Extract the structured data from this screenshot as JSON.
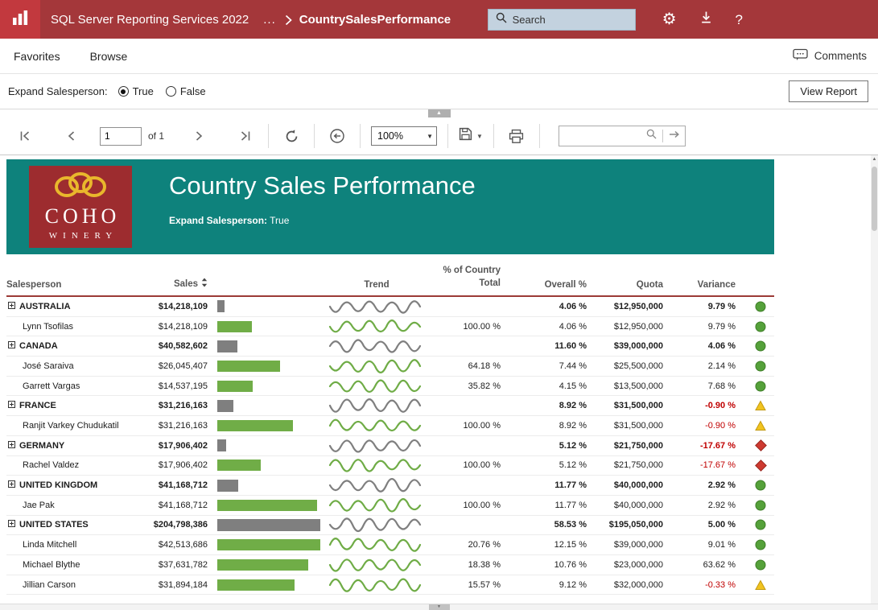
{
  "header": {
    "title": "SQL Server Reporting Services 2022",
    "breadcrumb_ellipsis": "...",
    "breadcrumb_current": "CountrySalesPerformance",
    "search_placeholder": "Search",
    "gear_icon": "⚙",
    "help_icon": "?"
  },
  "nav": {
    "favorites": "Favorites",
    "browse": "Browse",
    "comments": "Comments"
  },
  "params": {
    "label": "Expand Salesperson:",
    "option_true": "True",
    "option_false": "False",
    "selected": "True",
    "view_report": "View Report"
  },
  "toolbar": {
    "page_number": "1",
    "page_of": "of 1",
    "zoom": "100%"
  },
  "report": {
    "banner": {
      "logo_line1": "COHO",
      "logo_line2": "WINERY",
      "title": "Country Sales Performance",
      "param_label": "Expand Salesperson:",
      "param_value": "True"
    },
    "colors": {
      "brand_red": "#A4373A",
      "logo_tile_red": "#C2393E",
      "banner_teal": "#0E827C",
      "logo_red": "#9D2C2F",
      "ring_yellow": "#E9B72C",
      "country_bar": "#7F7F7F",
      "person_bar": "#70AD47",
      "country_spark": "#7F7F7F",
      "person_spark": "#6FAC46",
      "negative_text": "#C00000",
      "indicator_green": "#55A13A",
      "indicator_yellow": "#F1C31F",
      "indicator_red": "#CD3A30",
      "header_rule_red": "#9C3A36"
    },
    "table": {
      "headers": {
        "salesperson": "Salesperson",
        "sales": "Sales",
        "trend": "Trend",
        "pct_country": "% of Country Total",
        "overall": "Overall %",
        "quota": "Quota",
        "variance": "Variance"
      },
      "rows": [
        {
          "type": "country",
          "name": "AUSTRALIA",
          "sales": "$14,218,109",
          "sales_num": 14218109,
          "pct": "",
          "overall": "4.06 %",
          "quota": "$12,950,000",
          "variance": "9.79 %",
          "indicator": "green-circle"
        },
        {
          "type": "person",
          "name": "Lynn Tsofilas",
          "sales": "$14,218,109",
          "sales_num": 14218109,
          "pct": "100.00 %",
          "overall": "4.06 %",
          "quota": "$12,950,000",
          "variance": "9.79 %",
          "indicator": "green-circle"
        },
        {
          "type": "country",
          "name": "CANADA",
          "sales": "$40,582,602",
          "sales_num": 40582602,
          "pct": "",
          "overall": "11.60 %",
          "quota": "$39,000,000",
          "variance": "4.06 %",
          "indicator": "green-circle"
        },
        {
          "type": "person",
          "name": "José Saraiva",
          "sales": "$26,045,407",
          "sales_num": 26045407,
          "pct": "64.18 %",
          "overall": "7.44 %",
          "quota": "$25,500,000",
          "variance": "2.14 %",
          "indicator": "green-circle"
        },
        {
          "type": "person",
          "name": "Garrett Vargas",
          "sales": "$14,537,195",
          "sales_num": 14537195,
          "pct": "35.82 %",
          "overall": "4.15 %",
          "quota": "$13,500,000",
          "variance": "7.68 %",
          "indicator": "green-circle"
        },
        {
          "type": "country",
          "name": "FRANCE",
          "sales": "$31,216,163",
          "sales_num": 31216163,
          "pct": "",
          "overall": "8.92 %",
          "quota": "$31,500,000",
          "variance": "-0.90 %",
          "indicator": "yellow-triangle"
        },
        {
          "type": "person",
          "name": "Ranjit Varkey Chudukatil",
          "sales": "$31,216,163",
          "sales_num": 31216163,
          "pct": "100.00 %",
          "overall": "8.92 %",
          "quota": "$31,500,000",
          "variance": "-0.90 %",
          "indicator": "yellow-triangle"
        },
        {
          "type": "country",
          "name": "GERMANY",
          "sales": "$17,906,402",
          "sales_num": 17906402,
          "pct": "",
          "overall": "5.12 %",
          "quota": "$21,750,000",
          "variance": "-17.67 %",
          "indicator": "red-diamond"
        },
        {
          "type": "person",
          "name": "Rachel Valdez",
          "sales": "$17,906,402",
          "sales_num": 17906402,
          "pct": "100.00 %",
          "overall": "5.12 %",
          "quota": "$21,750,000",
          "variance": "-17.67 %",
          "indicator": "red-diamond"
        },
        {
          "type": "country",
          "name": "UNITED KINGDOM",
          "sales": "$41,168,712",
          "sales_num": 41168712,
          "pct": "",
          "overall": "11.77 %",
          "quota": "$40,000,000",
          "variance": "2.92 %",
          "indicator": "green-circle"
        },
        {
          "type": "person",
          "name": "Jae Pak",
          "sales": "$41,168,712",
          "sales_num": 41168712,
          "pct": "100.00 %",
          "overall": "11.77 %",
          "quota": "$40,000,000",
          "variance": "2.92 %",
          "indicator": "green-circle"
        },
        {
          "type": "country",
          "name": "UNITED STATES",
          "sales": "$204,798,386",
          "sales_num": 204798386,
          "pct": "",
          "overall": "58.53 %",
          "quota": "$195,050,000",
          "variance": "5.00 %",
          "indicator": "green-circle"
        },
        {
          "type": "person",
          "name": "Linda Mitchell",
          "sales": "$42,513,686",
          "sales_num": 42513686,
          "pct": "20.76 %",
          "overall": "12.15 %",
          "quota": "$39,000,000",
          "variance": "9.01 %",
          "indicator": "green-circle"
        },
        {
          "type": "person",
          "name": "Michael Blythe",
          "sales": "$37,631,782",
          "sales_num": 37631782,
          "pct": "18.38 %",
          "overall": "10.76 %",
          "quota": "$23,000,000",
          "variance": "63.62 %",
          "indicator": "green-circle"
        },
        {
          "type": "person",
          "name": "Jillian Carson",
          "sales": "$31,894,184",
          "sales_num": 31894184,
          "pct": "15.57 %",
          "overall": "9.12 %",
          "quota": "$32,000,000",
          "variance": "-0.33 %",
          "indicator": "yellow-triangle"
        }
      ]
    }
  }
}
